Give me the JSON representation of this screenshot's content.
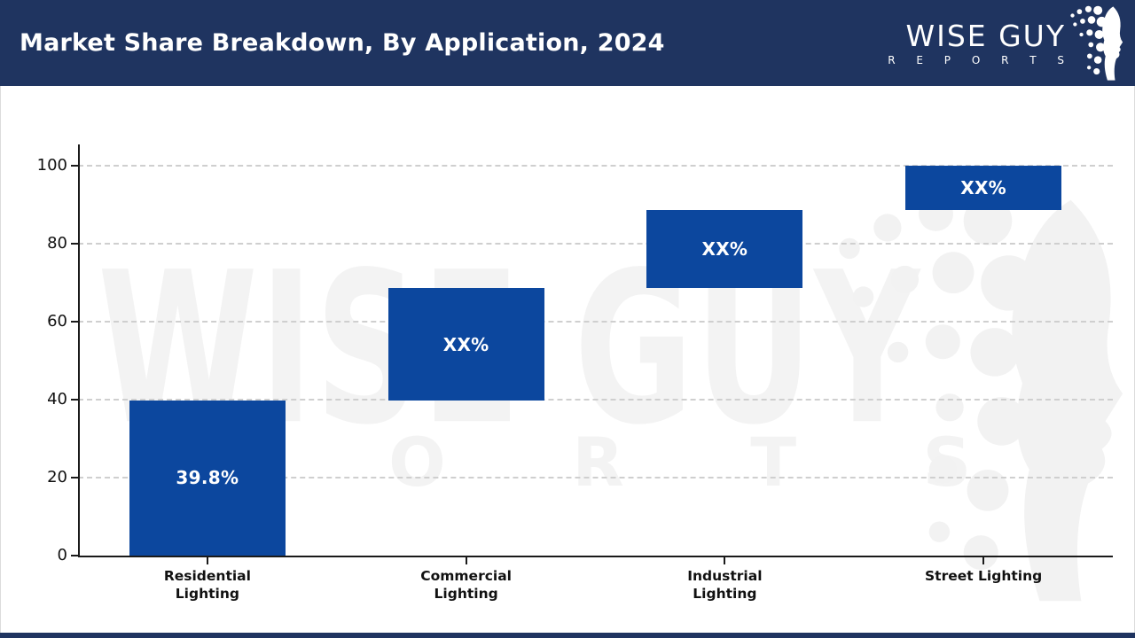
{
  "header": {
    "title": "Market Share Breakdown, By Application, 2024",
    "logo": {
      "line1": "WISE GUY",
      "line2": "R E P O R T S"
    }
  },
  "watermark": {
    "line1": "WISE GUY",
    "line2": "P O R T S"
  },
  "footer": {},
  "colors": {
    "header_bg": "#1f3460",
    "footer_bg": "#1f3460",
    "bar": "#0c479e",
    "bar_label": "#ffffff",
    "axis": "#1a1a1a",
    "grid": "#cfcfcf",
    "watermark": "#f3f3f3"
  },
  "chart_data": {
    "type": "bar",
    "subtype": "waterfall-floating-bars",
    "title": "Market Share Breakdown, By Application, 2024",
    "categories": [
      {
        "line1": "Residential",
        "line2": "Lighting"
      },
      {
        "line1": "Commercial",
        "line2": "Lighting"
      },
      {
        "line1": "Industrial",
        "line2": "Lighting"
      },
      {
        "line1": "Street Lighting",
        "line2": ""
      }
    ],
    "segments": [
      {
        "category": "Residential Lighting",
        "start": 0,
        "end": 39.8,
        "value": 39.8,
        "label": "39.8%"
      },
      {
        "category": "Commercial Lighting",
        "start": 39.8,
        "end": 68.6,
        "value": 28.8,
        "label": "XX%"
      },
      {
        "category": "Industrial Lighting",
        "start": 68.6,
        "end": 88.6,
        "value": 20.0,
        "label": "XX%"
      },
      {
        "category": "Street Lighting",
        "start": 88.6,
        "end": 100,
        "value": 11.4,
        "label": "XX%"
      }
    ],
    "yticks": [
      0,
      20,
      40,
      60,
      80,
      100
    ],
    "ylim": [
      0,
      105.5
    ],
    "xlabel": "",
    "ylabel": "",
    "grid": "horizontal-dashed",
    "legend": "none",
    "bar_color": "#0c479e",
    "label_color": "#ffffff"
  }
}
